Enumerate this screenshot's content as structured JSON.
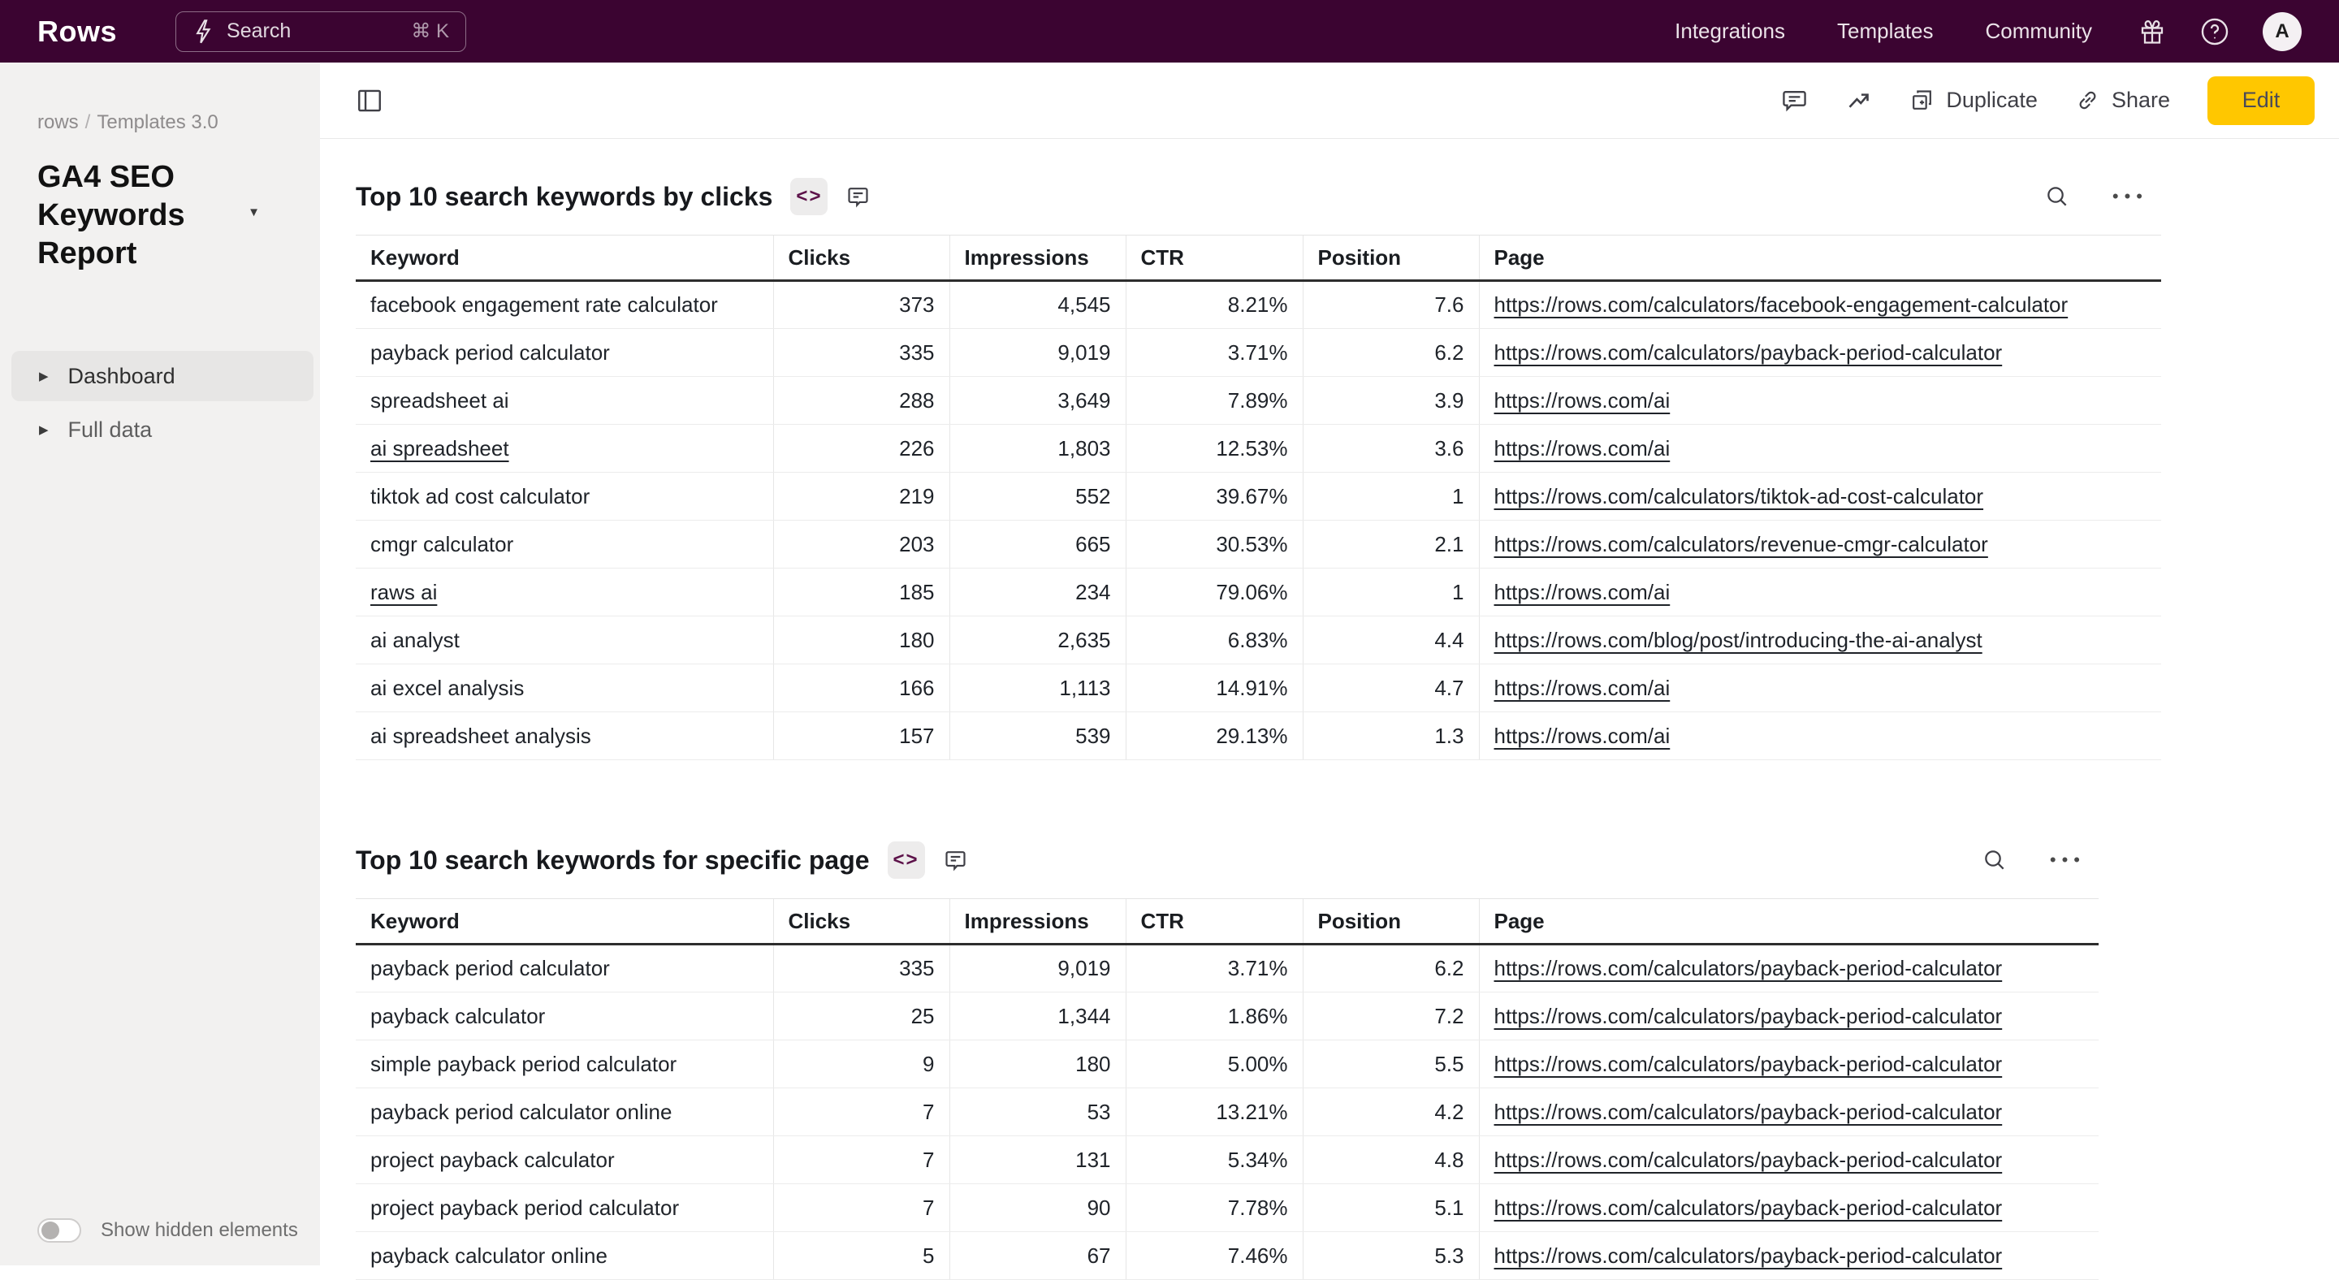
{
  "header": {
    "logo": "Rows",
    "search": {
      "placeholder": "Search",
      "shortcut": "⌘ K"
    },
    "nav": {
      "integrations": "Integrations",
      "templates": "Templates",
      "community": "Community"
    },
    "avatar_initial": "A"
  },
  "sidebar": {
    "breadcrumb": {
      "workspace": "rows",
      "folder": "Templates 3.0"
    },
    "title": "GA4 SEO Keywords Report",
    "items": [
      {
        "label": "Dashboard",
        "active": true
      },
      {
        "label": "Full data",
        "active": false
      }
    ],
    "toggle_label": "Show hidden elements"
  },
  "toolbar": {
    "duplicate_label": "Duplicate",
    "share_label": "Share",
    "edit_label": "Edit"
  },
  "icons": {
    "search": "magnifier",
    "bolt": "lightning-bolt",
    "gift": "gift-box",
    "help": "question-circle",
    "panel": "collapse-sidebar",
    "comment": "speech-bubble",
    "trend": "trending-up-arrow",
    "duplicate": "copy-plus",
    "share": "chain-link",
    "code_chip": "<>",
    "menu": "ellipsis"
  },
  "colors": {
    "topbar_bg": "#3B0431",
    "accent_yellow": "#FFC700",
    "sidebar_bg": "#F2F1F0",
    "chip_glyph": "#5C1149"
  },
  "tables": [
    {
      "title": "Top 10 search keywords by clicks",
      "columns": [
        "Keyword",
        "Clicks",
        "Impressions",
        "CTR",
        "Position",
        "Page"
      ],
      "rows": [
        {
          "keyword": "facebook engagement rate calculator",
          "clicks": "373",
          "impressions": "4,545",
          "ctr": "8.21%",
          "position": "7.6",
          "page": "https://rows.com/calculators/facebook-engagement-calculator",
          "keyword_underlined": false
        },
        {
          "keyword": "payback period calculator",
          "clicks": "335",
          "impressions": "9,019",
          "ctr": "3.71%",
          "position": "6.2",
          "page": "https://rows.com/calculators/payback-period-calculator",
          "keyword_underlined": false
        },
        {
          "keyword": "spreadsheet ai",
          "clicks": "288",
          "impressions": "3,649",
          "ctr": "7.89%",
          "position": "3.9",
          "page": "https://rows.com/ai",
          "keyword_underlined": false
        },
        {
          "keyword": "ai spreadsheet",
          "clicks": "226",
          "impressions": "1,803",
          "ctr": "12.53%",
          "position": "3.6",
          "page": "https://rows.com/ai",
          "keyword_underlined": true
        },
        {
          "keyword": "tiktok ad cost calculator",
          "clicks": "219",
          "impressions": "552",
          "ctr": "39.67%",
          "position": "1",
          "page": "https://rows.com/calculators/tiktok-ad-cost-calculator",
          "keyword_underlined": false
        },
        {
          "keyword": "cmgr calculator",
          "clicks": "203",
          "impressions": "665",
          "ctr": "30.53%",
          "position": "2.1",
          "page": "https://rows.com/calculators/revenue-cmgr-calculator",
          "keyword_underlined": false
        },
        {
          "keyword": "raws ai",
          "clicks": "185",
          "impressions": "234",
          "ctr": "79.06%",
          "position": "1",
          "page": "https://rows.com/ai",
          "keyword_underlined": true
        },
        {
          "keyword": "ai analyst",
          "clicks": "180",
          "impressions": "2,635",
          "ctr": "6.83%",
          "position": "4.4",
          "page": "https://rows.com/blog/post/introducing-the-ai-analyst",
          "keyword_underlined": false
        },
        {
          "keyword": "ai excel analysis",
          "clicks": "166",
          "impressions": "1,113",
          "ctr": "14.91%",
          "position": "4.7",
          "page": "https://rows.com/ai",
          "keyword_underlined": false
        },
        {
          "keyword": "ai spreadsheet analysis",
          "clicks": "157",
          "impressions": "539",
          "ctr": "29.13%",
          "position": "1.3",
          "page": "https://rows.com/ai",
          "keyword_underlined": false
        }
      ]
    },
    {
      "title": "Top 10 search keywords for specific page",
      "columns": [
        "Keyword",
        "Clicks",
        "Impressions",
        "CTR",
        "Position",
        "Page"
      ],
      "rows": [
        {
          "keyword": "payback period calculator",
          "clicks": "335",
          "impressions": "9,019",
          "ctr": "3.71%",
          "position": "6.2",
          "page": "https://rows.com/calculators/payback-period-calculator",
          "keyword_underlined": false
        },
        {
          "keyword": "payback calculator",
          "clicks": "25",
          "impressions": "1,344",
          "ctr": "1.86%",
          "position": "7.2",
          "page": "https://rows.com/calculators/payback-period-calculator",
          "keyword_underlined": false
        },
        {
          "keyword": "simple payback period calculator",
          "clicks": "9",
          "impressions": "180",
          "ctr": "5.00%",
          "position": "5.5",
          "page": "https://rows.com/calculators/payback-period-calculator",
          "keyword_underlined": false
        },
        {
          "keyword": "payback period calculator online",
          "clicks": "7",
          "impressions": "53",
          "ctr": "13.21%",
          "position": "4.2",
          "page": "https://rows.com/calculators/payback-period-calculator",
          "keyword_underlined": false
        },
        {
          "keyword": "project payback calculator",
          "clicks": "7",
          "impressions": "131",
          "ctr": "5.34%",
          "position": "4.8",
          "page": "https://rows.com/calculators/payback-period-calculator",
          "keyword_underlined": false
        },
        {
          "keyword": "project payback period calculator",
          "clicks": "7",
          "impressions": "90",
          "ctr": "7.78%",
          "position": "5.1",
          "page": "https://rows.com/calculators/payback-period-calculator",
          "keyword_underlined": false
        },
        {
          "keyword": "payback calculator online",
          "clicks": "5",
          "impressions": "67",
          "ctr": "7.46%",
          "position": "5.3",
          "page": "https://rows.com/calculators/payback-period-calculator",
          "keyword_underlined": false
        }
      ]
    }
  ]
}
